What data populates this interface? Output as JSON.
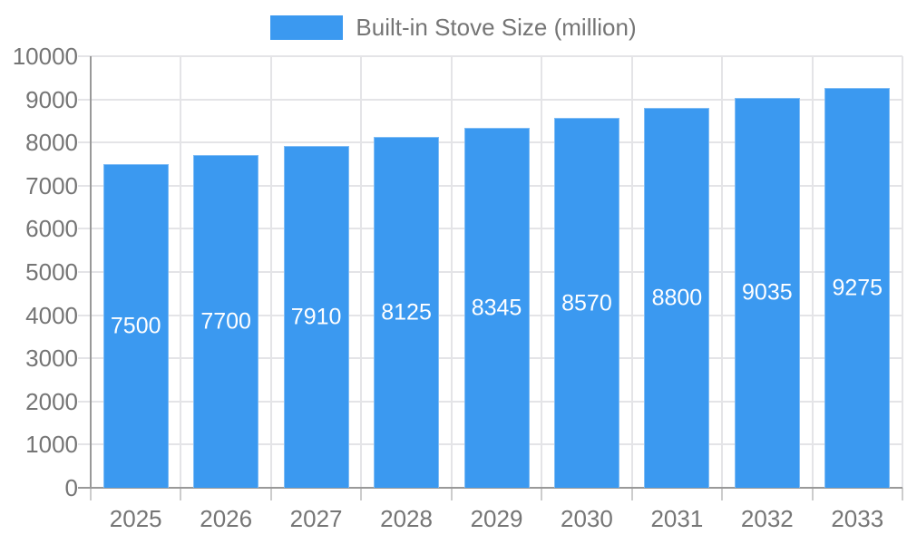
{
  "legend": {
    "label": "Built-in Stove Size (million)"
  },
  "style": {
    "bar_color": "#3B99F0",
    "grid_color": "#E4E4E7",
    "axis_color": "#999999",
    "tick_color": "#CCCCCC",
    "text_color": "#757575",
    "bar_label_color": "#FFFFFF",
    "background": "#FFFFFF"
  },
  "chart_data": {
    "type": "bar",
    "title": "Built-in Stove Size (million)",
    "categories": [
      "2025",
      "2026",
      "2027",
      "2028",
      "2029",
      "2030",
      "2031",
      "2032",
      "2033"
    ],
    "values": [
      7500,
      7700,
      7910,
      8125,
      8345,
      8570,
      8800,
      9035,
      9275
    ],
    "xlabel": "",
    "ylabel": "",
    "ylim": [
      0,
      10000
    ],
    "yticks": [
      0,
      1000,
      2000,
      3000,
      4000,
      5000,
      6000,
      7000,
      8000,
      9000,
      10000
    ],
    "grid": true,
    "legend_position": "top",
    "bar_labels_inside": true,
    "bar_label_position": "center"
  }
}
